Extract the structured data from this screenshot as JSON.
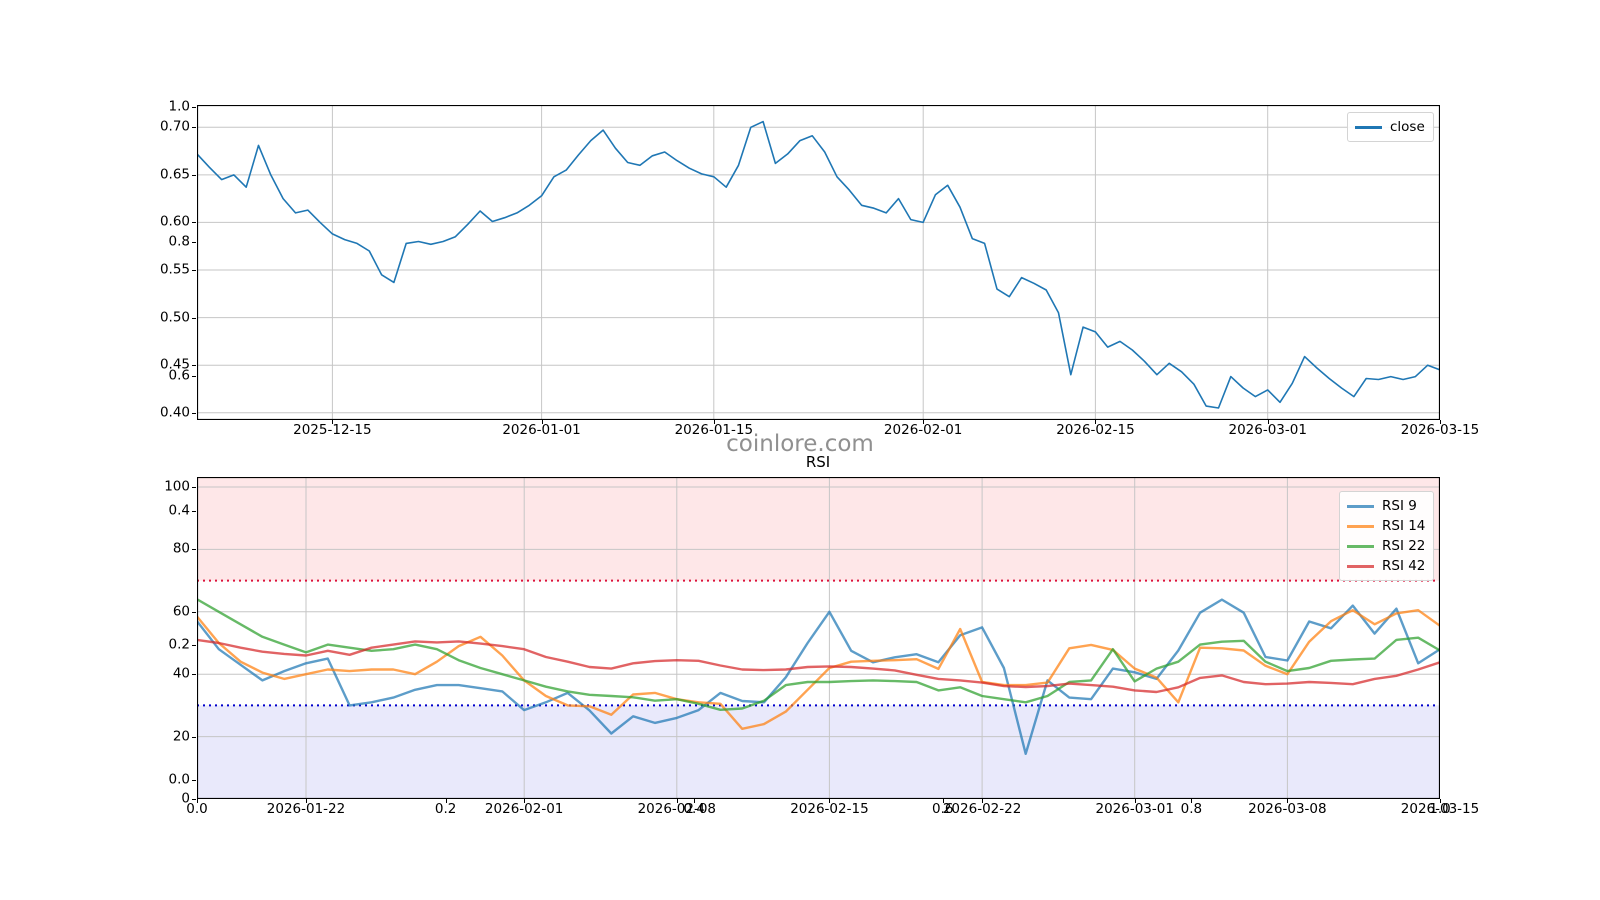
{
  "watermark": "coinlore.com",
  "palette": {
    "grid": "#c6c6c6",
    "spine": "#000000",
    "overbought_band": "rgba(244,67,77,0.13)",
    "oversold_band": "rgba(40,40,220,0.10)",
    "overbought_line": "#dc143c",
    "oversold_line": "#0000cc",
    "watermark_color": "#909090"
  },
  "ghost_axis": {
    "y_labels": [
      "1.0",
      "0.8",
      "0.6",
      "0.4",
      "0.2",
      "0.0"
    ],
    "x_labels": [
      "0.0",
      "0.2",
      "0.4",
      "0.6",
      "0.8",
      "1.0"
    ]
  },
  "chart_data": [
    {
      "type": "line",
      "title": "",
      "legend_position": "upper right",
      "grid": true,
      "ylim": [
        0.3924,
        0.7234
      ],
      "y_ticks": [
        {
          "label": "0.70",
          "v": 0.7
        },
        {
          "label": "0.65",
          "v": 0.65
        },
        {
          "label": "0.60",
          "v": 0.6
        },
        {
          "label": "0.55",
          "v": 0.55
        },
        {
          "label": "0.50",
          "v": 0.5
        },
        {
          "label": "0.45",
          "v": 0.45
        },
        {
          "label": "0.40",
          "v": 0.4
        }
      ],
      "x_ticks": [
        {
          "label": "2025-12-15",
          "f": 0.1089
        },
        {
          "label": "2026-01-01",
          "f": 0.2772
        },
        {
          "label": "2026-01-15",
          "f": 0.4158
        },
        {
          "label": "2026-02-01",
          "f": 0.5842
        },
        {
          "label": "2026-02-15",
          "f": 0.7228
        },
        {
          "label": "2026-03-01",
          "f": 0.8614
        },
        {
          "label": "2026-03-15",
          "f": 1.0
        }
      ],
      "series": [
        {
          "name": "close",
          "color": "#1f77b4",
          "width": 1.6,
          "values": [
            0.672,
            0.658,
            0.645,
            0.65,
            0.637,
            0.681,
            0.65,
            0.625,
            0.61,
            0.613,
            0.6,
            0.588,
            0.582,
            0.578,
            0.57,
            0.545,
            0.537,
            0.578,
            0.58,
            0.577,
            0.58,
            0.585,
            0.598,
            0.612,
            0.601,
            0.605,
            0.61,
            0.618,
            0.628,
            0.648,
            0.655,
            0.671,
            0.686,
            0.697,
            0.678,
            0.663,
            0.66,
            0.67,
            0.674,
            0.665,
            0.657,
            0.651,
            0.648,
            0.637,
            0.66,
            0.7,
            0.706,
            0.662,
            0.672,
            0.686,
            0.691,
            0.674,
            0.648,
            0.634,
            0.618,
            0.615,
            0.61,
            0.625,
            0.603,
            0.6,
            0.629,
            0.639,
            0.616,
            0.583,
            0.578,
            0.53,
            0.522,
            0.542,
            0.536,
            0.529,
            0.505,
            0.44,
            0.49,
            0.485,
            0.469,
            0.475,
            0.466,
            0.454,
            0.44,
            0.452,
            0.443,
            0.43,
            0.407,
            0.405,
            0.438,
            0.426,
            0.417,
            0.424,
            0.411,
            0.431,
            0.459,
            0.447,
            0.436,
            0.426,
            0.417,
            0.436,
            0.435,
            0.438,
            0.435,
            0.438,
            0.45,
            0.445
          ]
        }
      ]
    },
    {
      "type": "line",
      "title": "RSI",
      "legend_position": "upper right",
      "grid": true,
      "ylim": [
        0,
        103.2
      ],
      "overbought": 70,
      "oversold": 30,
      "y_ticks": [
        {
          "label": "100",
          "v": 100
        },
        {
          "label": "80",
          "v": 80
        },
        {
          "label": "60",
          "v": 60
        },
        {
          "label": "40",
          "v": 40
        },
        {
          "label": "20",
          "v": 20
        },
        {
          "label": "0",
          "v": 0
        }
      ],
      "x_ticks": [
        {
          "label": "2026-01-22",
          "f": 0.0877
        },
        {
          "label": "2026-02-01",
          "f": 0.2632
        },
        {
          "label": "2026-02-08",
          "f": 0.386
        },
        {
          "label": "2026-02-15",
          "f": 0.5088
        },
        {
          "label": "2026-02-22",
          "f": 0.6316
        },
        {
          "label": "2026-03-01",
          "f": 0.7544
        },
        {
          "label": "2026-03-08",
          "f": 0.8772
        },
        {
          "label": "2026-03-15",
          "f": 1.0
        }
      ],
      "series": [
        {
          "name": "RSI 9",
          "color": "rgba(31,119,180,0.72)",
          "width": 2.4,
          "values": [
            57,
            48,
            43,
            38,
            41,
            43.5,
            45,
            30,
            31,
            32.5,
            35,
            36.5,
            36.5,
            35.5,
            34.5,
            28.5,
            31,
            34,
            28.4,
            21,
            26.5,
            24.4,
            26,
            28.5,
            34,
            31.4,
            31,
            39,
            50,
            60,
            47.5,
            43.8,
            45.4,
            46.4,
            43.8,
            52.5,
            55,
            42,
            14.5,
            38,
            32.5,
            32,
            41.8,
            40.6,
            38.5,
            47.6,
            59.7,
            63.9,
            59.7,
            45.5,
            44.4,
            56.9,
            54.7,
            62,
            53,
            61,
            43.5,
            48
          ]
        },
        {
          "name": "RSI 14",
          "color": "rgba(255,127,14,0.72)",
          "width": 2.4,
          "values": [
            58.5,
            50,
            44,
            40.5,
            38.5,
            40,
            41.5,
            41,
            41.5,
            41.5,
            40,
            44,
            49,
            52,
            46,
            38,
            33,
            30,
            29.7,
            27,
            33.5,
            34,
            32,
            31,
            30.5,
            22.5,
            24,
            28,
            35,
            42,
            44,
            44.3,
            44.5,
            44.8,
            41.7,
            54.5,
            37.5,
            36.5,
            36.5,
            37.3,
            48.3,
            49.4,
            47.8,
            41.8,
            38.9,
            31,
            48.5,
            48.3,
            47.6,
            42.7,
            40,
            50.4,
            57,
            60.5,
            56,
            59.5,
            60.5,
            55.5
          ]
        },
        {
          "name": "RSI 22",
          "color": "rgba(44,160,44,0.72)",
          "width": 2.4,
          "values": [
            64,
            60,
            56,
            52,
            49.5,
            47,
            49.5,
            48.5,
            47.5,
            48,
            49.5,
            48,
            44.5,
            42,
            40,
            38,
            36,
            34.5,
            33.4,
            33,
            32.6,
            31.5,
            32,
            30.5,
            28.6,
            29,
            31.5,
            36.5,
            37.5,
            37.5,
            37.8,
            38,
            37.8,
            37.5,
            34.8,
            35.8,
            33,
            32,
            31,
            33,
            37.5,
            38,
            48,
            37.7,
            41.8,
            44,
            49.5,
            50.4,
            50.7,
            44,
            41,
            42,
            44.3,
            44.7,
            45,
            51,
            51.7,
            47.6
          ]
        },
        {
          "name": "RSI 42",
          "color": "rgba(214,39,40,0.72)",
          "width": 2.4,
          "values": [
            51,
            50,
            48.5,
            47.2,
            46.5,
            46,
            47.5,
            46.2,
            48.5,
            49.5,
            50.5,
            50.2,
            50.5,
            49.8,
            49,
            48,
            45.5,
            44,
            42.3,
            41.8,
            43.5,
            44.2,
            44.5,
            44.3,
            42.8,
            41.5,
            41.3,
            41.5,
            42.3,
            42.5,
            42.3,
            41.8,
            41.2,
            39.8,
            38.5,
            38,
            37.3,
            36.2,
            35.9,
            36.2,
            37,
            36.5,
            36,
            34.8,
            34.3,
            35.8,
            38.8,
            39.6,
            37.5,
            36.8,
            37,
            37.5,
            37.2,
            36.8,
            38.5,
            39.5,
            41.5,
            43.8
          ]
        }
      ]
    }
  ]
}
